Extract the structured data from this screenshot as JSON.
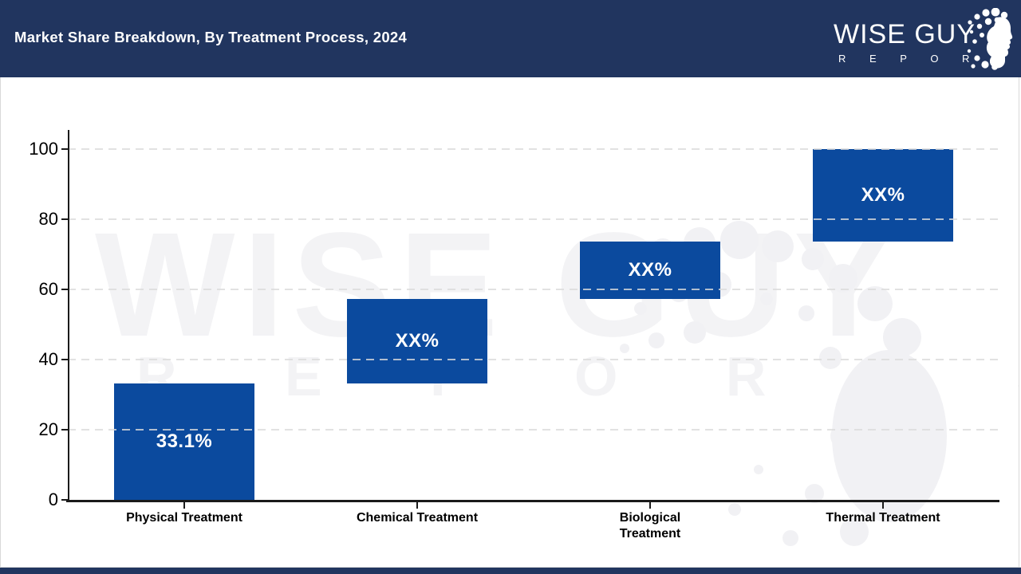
{
  "header": {
    "title": "Market Share Breakdown, By Treatment Process, 2024",
    "logo_line1": "WISE GUY",
    "logo_line2": "R E P O R T S"
  },
  "watermark": {
    "line1": "WISE GUY",
    "line2": "R E P O R T S"
  },
  "colors": {
    "header_bg": "#21355f",
    "bar": "#0b4a9e",
    "grid": "#dbdbdb",
    "axis": "#1a1a1a",
    "bar_label": "#ffffff",
    "watermark": "#f3f3f5"
  },
  "chart_data": {
    "type": "bar",
    "subtype": "waterfall",
    "title": "Market Share Breakdown, By Treatment Process, 2024",
    "categories": [
      "Physical Treatment",
      "Chemical Treatment",
      "Biological\nTreatment",
      "Thermal Treatment"
    ],
    "segments": [
      {
        "category": "Physical Treatment",
        "start": 0,
        "end": 33.1,
        "label": "33.1%"
      },
      {
        "category": "Chemical Treatment",
        "start": 33.1,
        "end": 57.2,
        "label": "XX%"
      },
      {
        "category": "Biological Treatment",
        "start": 57.2,
        "end": 73.6,
        "label": "XX%"
      },
      {
        "category": "Thermal Treatment",
        "start": 73.6,
        "end": 100,
        "label": "XX%"
      }
    ],
    "xlabel": "",
    "ylabel": "",
    "ylim": [
      0,
      100
    ],
    "yticks": [
      0,
      20,
      40,
      60,
      80,
      100
    ],
    "grid": "horizontal dashed",
    "legend": "none"
  }
}
